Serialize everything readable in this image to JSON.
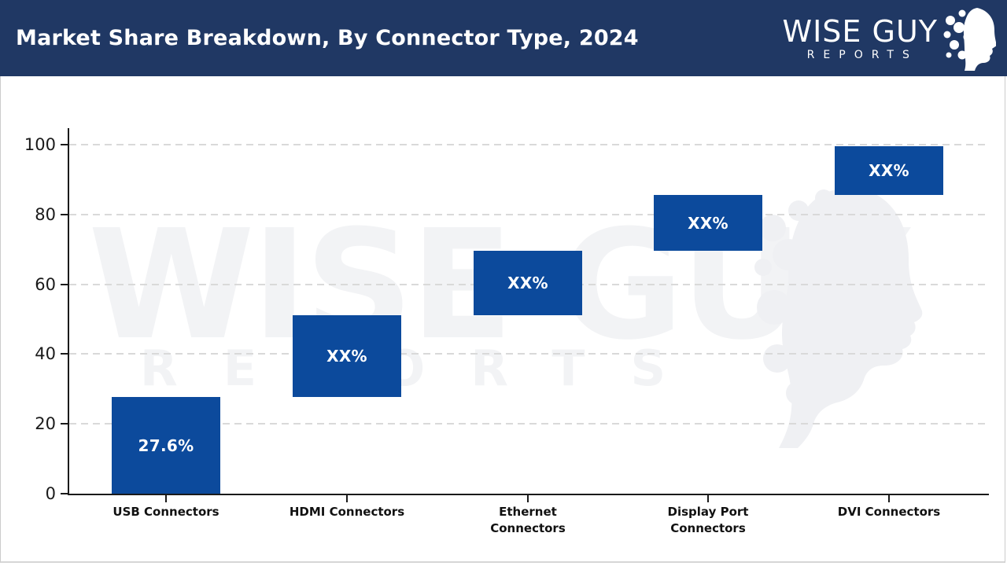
{
  "header": {
    "title": "Market Share Breakdown, By Connector Type, 2024",
    "bg_color": "#203864",
    "logo": {
      "line1": "WISE GUY",
      "line2": "REPORTS"
    }
  },
  "watermark": {
    "line1": "WISE GUY",
    "line2": "REPORTS",
    "color": "#f2f3f5"
  },
  "chart_data": {
    "type": "bar",
    "subtype": "waterfall",
    "title": "Market Share Breakdown, By Connector Type, 2024",
    "xlabel": "",
    "ylabel": "",
    "ylim": [
      0,
      105
    ],
    "yticks": [
      0,
      20,
      40,
      60,
      80,
      100
    ],
    "grid": "horizontal dashed at yticks",
    "grid_color": "#d9d9d9",
    "bar_color": "#0c4a9c",
    "axis_color": "#1a1a1a",
    "categories": [
      "USB Connectors",
      "HDMI Connectors",
      "Ethernet Connectors",
      "Display Port Connectors",
      "DVI Connectors"
    ],
    "category_label_lines": [
      [
        "USB Connectors"
      ],
      [
        "HDMI Connectors"
      ],
      [
        "Ethernet",
        "Connectors"
      ],
      [
        "Display Port",
        "Connectors"
      ],
      [
        "DVI Connectors"
      ]
    ],
    "bars": [
      {
        "category": "USB Connectors",
        "start": 0,
        "end": 27.6,
        "label": "27.6%"
      },
      {
        "category": "HDMI Connectors",
        "start": 27.6,
        "end": 51.2,
        "label": "XX%"
      },
      {
        "category": "Ethernet Connectors",
        "start": 51.2,
        "end": 69.5,
        "label": "XX%"
      },
      {
        "category": "Display Port Connectors",
        "start": 69.5,
        "end": 85.5,
        "label": "XX%"
      },
      {
        "category": "DVI Connectors",
        "start": 85.6,
        "end": 99.6,
        "label": "XX%"
      }
    ]
  }
}
